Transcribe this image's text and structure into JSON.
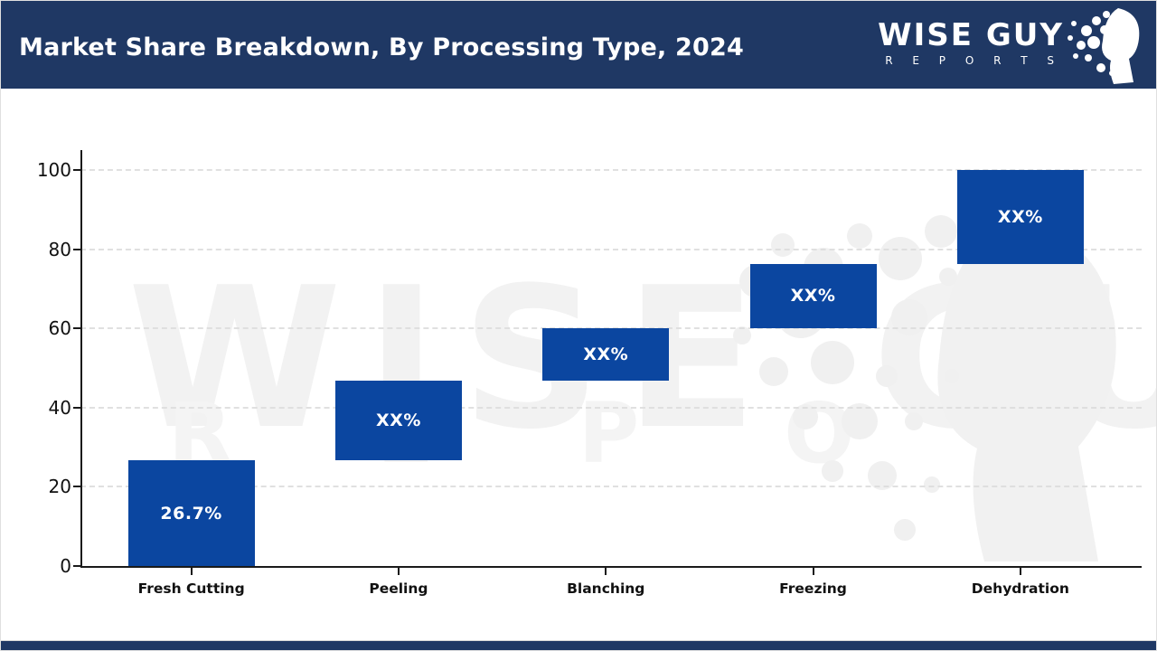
{
  "header": {
    "title": "Market Share Breakdown, By Processing Type, 2024",
    "bg_color": "#1f3864",
    "logo": {
      "line1": "WISE GUY",
      "line2": "R E P O R T S"
    }
  },
  "watermark": {
    "line1": "WISE GUY",
    "line2": "R E P O R T S"
  },
  "footer": {
    "bar_color": "#1f3864"
  },
  "chart_data": {
    "type": "bar",
    "subtype": "waterfall",
    "title": "Market Share Breakdown, By Processing Type, 2024",
    "categories": [
      "Fresh Cutting",
      "Peeling",
      "Blanching",
      "Freezing",
      "Dehydration"
    ],
    "series": [
      {
        "name": "Market share (%)",
        "segments": [
          {
            "category": "Fresh Cutting",
            "start": 0,
            "end": 26.7,
            "label": "26.7%"
          },
          {
            "category": "Peeling",
            "start": 26.7,
            "end": 46.7,
            "label": "XX%"
          },
          {
            "category": "Blanching",
            "start": 46.7,
            "end": 60.1,
            "label": "XX%"
          },
          {
            "category": "Freezing",
            "start": 60.1,
            "end": 76.3,
            "label": "XX%"
          },
          {
            "category": "Dehydration",
            "start": 76.3,
            "end": 100,
            "label": "XX%"
          }
        ]
      }
    ],
    "xlabel": "",
    "ylabel": "",
    "y_ticks": [
      0,
      20,
      40,
      60,
      80,
      100
    ],
    "ylim": [
      0,
      105
    ],
    "bar_color": "#0b46a0",
    "grid": "horizontal-dashed",
    "legend": "none"
  }
}
